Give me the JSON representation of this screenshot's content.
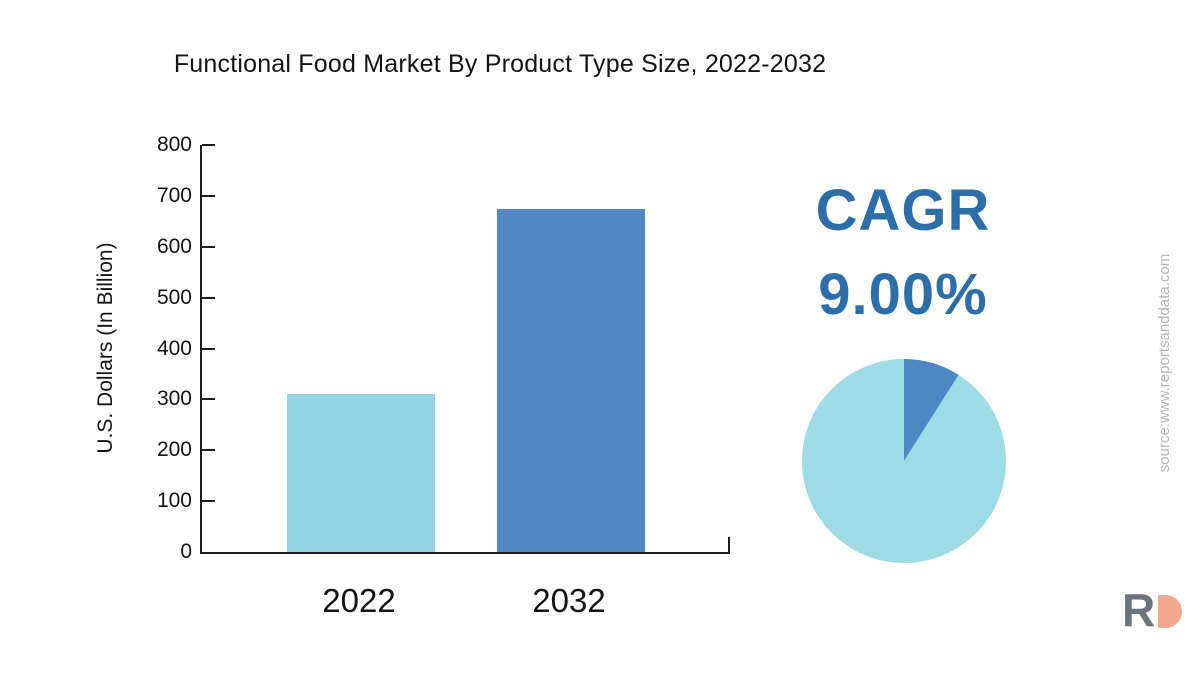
{
  "title": "Functional Food Market By Product Type Size, 2022-2032",
  "chart_data": {
    "type": "bar",
    "title": "Functional Food Market By Product Type Size, 2022-2032",
    "categories": [
      "2022",
      "2032"
    ],
    "values": [
      310,
      675
    ],
    "xlabel": "",
    "ylabel": "U.S. Dollars (In Billion)",
    "ylim": [
      0,
      800
    ],
    "ytick_step": 100,
    "yticks": [
      0,
      100,
      200,
      300,
      400,
      500,
      600,
      700,
      800
    ],
    "bar_colors": [
      "#95d5e1",
      "#5287c4"
    ],
    "grid": false,
    "legend": "none"
  },
  "cagr": {
    "label": "CAGR",
    "value": "9.00%",
    "color": "#2d6da8"
  },
  "pie": {
    "start_at_top_clockwise": true,
    "slices": [
      {
        "name": "base",
        "percent": 91,
        "color": "#9edbe5"
      },
      {
        "name": "highlight",
        "percent": 9,
        "color": "#4f86c5"
      }
    ]
  },
  "source": "source:www.reportsanddata.com",
  "logo": {
    "letter": "R",
    "letter_color": "#6d737a",
    "d_color": "#f3a88e"
  }
}
